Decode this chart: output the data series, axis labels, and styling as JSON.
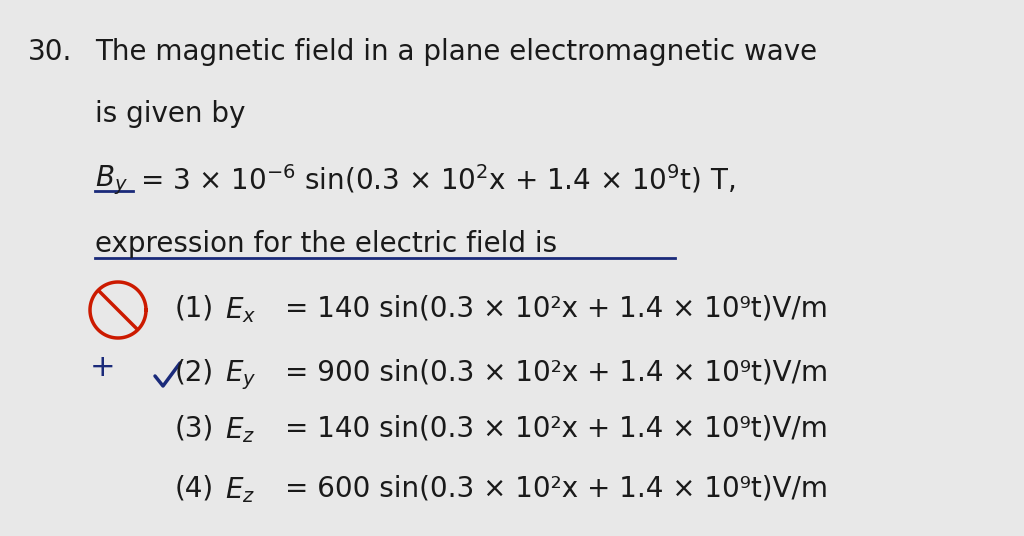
{
  "background_color": "#e8e8e8",
  "text_color": "#1a1a1a",
  "underline_color": "#1a2a7a",
  "circle_color": "#cc1a00",
  "mark2_color": "#1a2a7a",
  "font_size_title": 20,
  "font_size_body": 20,
  "font_size_formula": 20,
  "font_size_options": 20,
  "question_number": "30.",
  "question_line1": "The magnetic field in a plane electromagnetic wave",
  "question_line2": "is given by",
  "formula_text": "= 3 × 10⁻⁶ sin(0.3 × 10²x + 1.4 × 10⁹t) T,",
  "expression_text": "expression for the electric field is",
  "options": [
    {
      "num": "(1)",
      "var_sub": "E_x",
      "eq": "= 140 sin(0.3 × 10²x + 1.4 × 10⁹t)V/m"
    },
    {
      "num": "(2)",
      "var_sub": "E_y",
      "eq": "= 900 sin(0.3 × 10²x + 1.4 × 10⁹t)V/m"
    },
    {
      "num": "(3)",
      "var_sub": "E_z",
      "eq": "= 140 sin(0.3 × 10²x + 1.4 × 10⁹t)V/m"
    },
    {
      "num": "(4)",
      "var_sub": "E_z",
      "eq": "= 600 sin(0.3 × 10²x + 1.4 × 10⁹t)V/m"
    }
  ]
}
